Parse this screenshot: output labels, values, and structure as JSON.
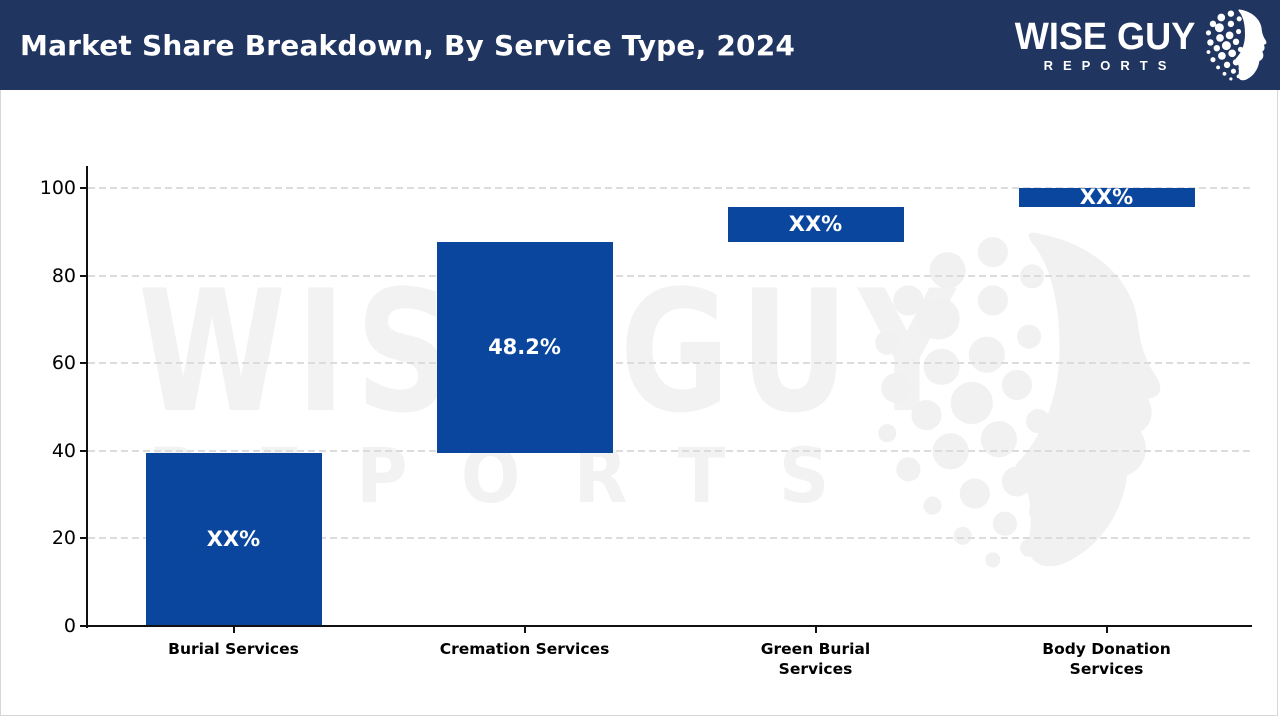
{
  "header": {
    "title": "Market Share Breakdown, By Service Type, 2024",
    "logo": {
      "line1": "WISE GUY",
      "line2": "REPORTS"
    }
  },
  "watermark": {
    "line1": "WISE GUY",
    "line2": "REPORTS"
  },
  "chart_data": {
    "type": "bar",
    "subtype": "waterfall",
    "title": "Market Share Breakdown, By Service Type, 2024",
    "categories": [
      "Burial Services",
      "Cremation Services",
      "Green Burial Services",
      "Body Donation Services"
    ],
    "category_label_lines": [
      [
        "Burial Services"
      ],
      [
        "Cremation Services"
      ],
      [
        "Green Burial",
        "Services"
      ],
      [
        "Body Donation",
        "Services"
      ]
    ],
    "segments": [
      {
        "category": "Burial Services",
        "start": 0,
        "end": 39.5,
        "value_label": "XX%"
      },
      {
        "category": "Cremation Services",
        "start": 39.5,
        "end": 87.7,
        "value_label": "48.2%"
      },
      {
        "category": "Green Burial Services",
        "start": 87.7,
        "end": 95.7,
        "value_label": "XX%"
      },
      {
        "category": "Body Donation Services",
        "start": 95.7,
        "end": 100,
        "value_label": "XX%"
      }
    ],
    "xlabel": "",
    "ylabel": "",
    "yticks": [
      0,
      20,
      40,
      60,
      80,
      100
    ],
    "ytick_labels": [
      "0",
      "20",
      "40",
      "60",
      "80",
      "100"
    ],
    "ylim": [
      0,
      105
    ],
    "grid": "horizontal-dashed",
    "legend": "none",
    "bar_color": "#0a469d",
    "bar_label_color": "#ffffff"
  },
  "colors": {
    "header_bg": "#213561",
    "header_text": "#ffffff",
    "bar": "#0a469d",
    "gridline": "#dcdcdc",
    "axis": "#111111",
    "watermark": "#f2f2f2",
    "page_bg": "#ffffff",
    "border": "#d7d7d7"
  }
}
